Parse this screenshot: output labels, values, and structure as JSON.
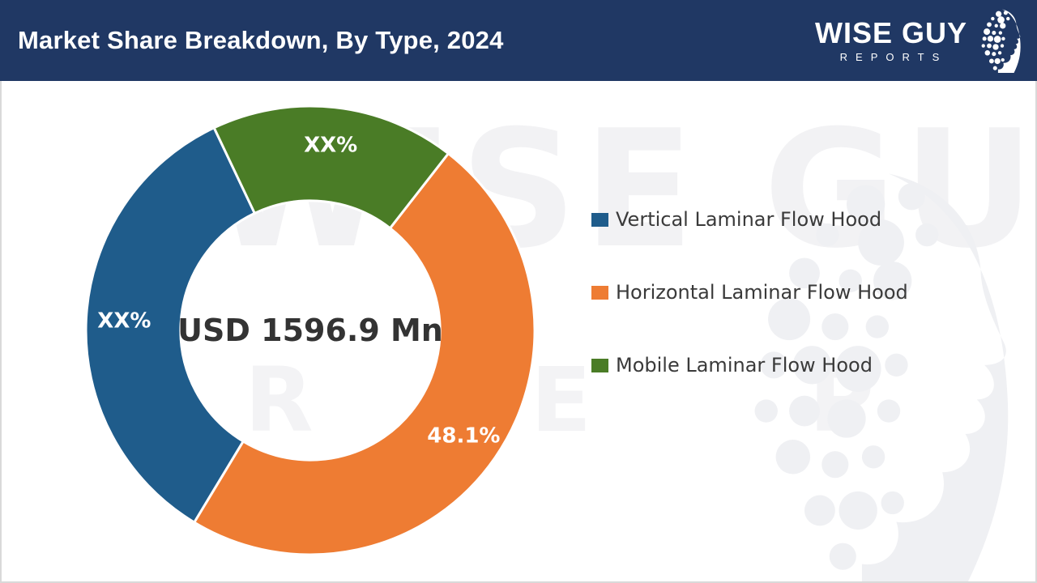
{
  "header": {
    "title": "Market Share Breakdown, By Type, 2024",
    "bg_color": "#203864",
    "logo": {
      "line1": "WISE GUY",
      "line2": "REPORTS",
      "icon": "dotted-face-profile-icon"
    }
  },
  "chart_data": {
    "type": "pie",
    "subtype": "donut",
    "center_label": "USD 1596.9 Mn",
    "slices": [
      {
        "name": "Vertical Laminar Flow Hood",
        "value": 34.3,
        "label": "XX%",
        "color": "#1F5C8B"
      },
      {
        "name": "Horizontal Laminar Flow Hood",
        "value": 48.1,
        "label": "48.1%",
        "color": "#EE7C33"
      },
      {
        "name": "Mobile Laminar Flow Hood",
        "value": 17.6,
        "label": "XX%",
        "color": "#4A7C26"
      }
    ],
    "start_angle_deg": 115.4,
    "direction": "counterclockwise",
    "inner_radius_ratio": 0.578,
    "label_radius_ratio": 0.83,
    "slice_label_color": "#FFFFFF",
    "center_label_color": "#333333",
    "legend_position": "right",
    "grid": false
  },
  "legend": {
    "items": [
      {
        "label": "Vertical Laminar Flow Hood"
      },
      {
        "label": "Horizontal Laminar Flow Hood"
      },
      {
        "label": "Mobile Laminar Flow Hood"
      }
    ]
  },
  "watermark": {
    "line1": "WISE GUY",
    "line2": "R E P O R T S",
    "icon": "dotted-face-profile-watermark"
  }
}
